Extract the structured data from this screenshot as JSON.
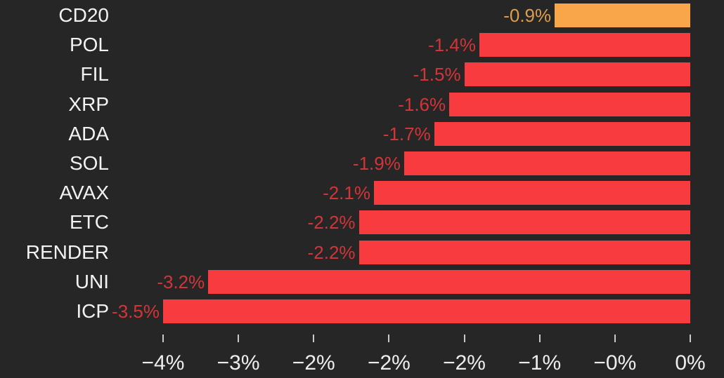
{
  "colors": {
    "background": "#262626",
    "bar_red": "#F83B3E",
    "bar_orange": "#F9A64B",
    "value_label_red": "#D23538",
    "value_label_orange": "#DE9C4D",
    "category_text": "#F2F2F2",
    "axis_text": "#EDEDED",
    "tick_mark": "#C9C9C9"
  },
  "chart_data": {
    "type": "bar",
    "orientation": "horizontal",
    "title": "",
    "xlabel": "",
    "ylabel": "",
    "categories": [
      "CD20",
      "POL",
      "FIL",
      "XRP",
      "ADA",
      "SOL",
      "AVAX",
      "ETC",
      "RENDER",
      "UNI",
      "ICP"
    ],
    "values": [
      -0.9,
      -1.4,
      -1.5,
      -1.6,
      -1.7,
      -1.9,
      -2.1,
      -2.2,
      -2.2,
      -3.2,
      -3.5
    ],
    "value_labels": [
      "-0.9%",
      "-1.4%",
      "-1.5%",
      "-1.6%",
      "-1.7%",
      "-1.9%",
      "-2.1%",
      "-2.2%",
      "-2.2%",
      "-3.2%",
      "-3.5%"
    ],
    "highlight_category": "CD20",
    "grid": false,
    "legend": false,
    "x_axis": {
      "tick_values": [
        -3.5,
        -3.0,
        -2.5,
        -2.0,
        -1.5,
        -1.0,
        -0.5,
        0.0
      ],
      "tick_labels": [
        "−4%",
        "−3%",
        "−2%",
        "−2%",
        "−2%",
        "−1%",
        "−0%",
        "0%"
      ],
      "range": [
        -4.58,
        0.22
      ]
    }
  }
}
